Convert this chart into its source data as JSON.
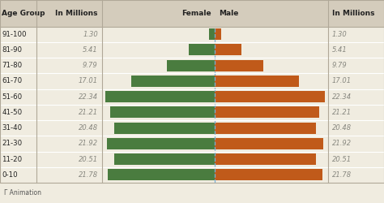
{
  "age_groups": [
    "91-100",
    "81-90",
    "71-80",
    "61-70",
    "51-60",
    "41-50",
    "31-40",
    "21-30",
    "11-20",
    "0-10"
  ],
  "female_values": [
    1.3,
    5.41,
    9.79,
    17.01,
    22.34,
    21.21,
    20.48,
    21.92,
    20.51,
    21.78
  ],
  "male_values": [
    1.3,
    5.41,
    9.79,
    17.01,
    22.34,
    21.21,
    20.48,
    21.92,
    20.51,
    21.78
  ],
  "female_color": "#4a7c3f",
  "male_color": "#c05a1a",
  "center_line_color": "#7aaed6",
  "bg_color": "#f0ece0",
  "row_bg_color": "#f0ece0",
  "header_bg": "#d4ccbc",
  "border_color": "#b0a898",
  "text_color_values": "#888880",
  "text_color_header": "#222222",
  "text_color_age": "#222222",
  "bar_height": 0.72,
  "xlim": 23,
  "title_female": "Female",
  "title_male": "Male",
  "col_age": "Age Group",
  "col_in_millions_left": "In Millions",
  "col_in_millions_right": "In Millions",
  "animation_text": "Animation"
}
